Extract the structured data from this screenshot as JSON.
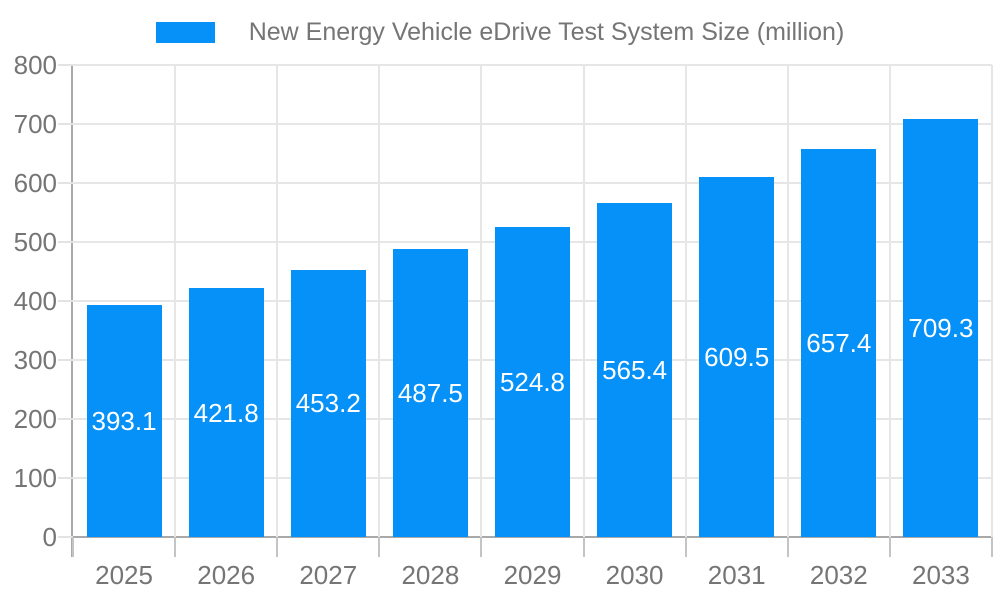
{
  "chart_data": {
    "type": "bar",
    "title": "New Energy Vehicle eDrive Test System Size (million)",
    "categories": [
      "2025",
      "2026",
      "2027",
      "2028",
      "2029",
      "2030",
      "2031",
      "2032",
      "2033"
    ],
    "values": [
      393.1,
      421.8,
      453.2,
      487.5,
      524.8,
      565.4,
      609.5,
      657.4,
      709.3
    ],
    "value_labels": [
      "393.1",
      "421.8",
      "453.2",
      "487.5",
      "524.8",
      "565.4",
      "609.5",
      "657.4",
      "709.3"
    ],
    "ylim": [
      0,
      800
    ],
    "ytick_step": 100,
    "ytick_labels": [
      "0",
      "100",
      "200",
      "300",
      "400",
      "500",
      "600",
      "700",
      "800"
    ],
    "grid": true,
    "legend_position": "top",
    "colors": {
      "bar": "#0591F7",
      "value_label": "#ffffff",
      "axis_text": "#757575",
      "grid_line": "#e6e6e6",
      "axis_line": "#a9a9a9",
      "x_tick": "#c4c4c4"
    }
  }
}
